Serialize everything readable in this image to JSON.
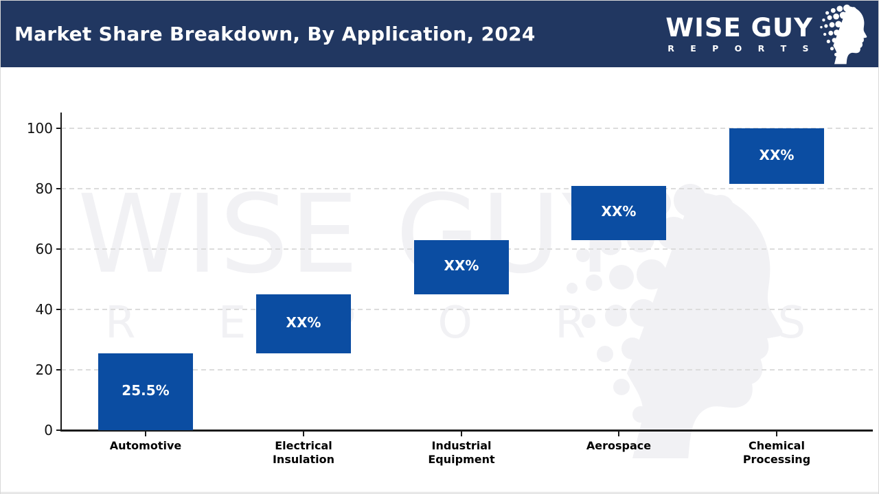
{
  "header": {
    "title": "Market Share Breakdown, By Application, 2024",
    "logo": {
      "primary": "WISE GUY",
      "secondary": "R E P O R T S"
    }
  },
  "watermark": {
    "line1": "WISE GUY",
    "line2": "R E P O R T S"
  },
  "colors": {
    "header_bg": "#213761",
    "bar": "#0B4DA2",
    "grid": "#DCDCDC",
    "axis": "#1A1A1A",
    "watermark": "#F1F1F4",
    "bar_label": "#FFFFFF"
  },
  "chart_data": {
    "type": "bar",
    "subtype": "waterfall",
    "title": "Market Share Breakdown, By Application, 2024",
    "categories": [
      "Automotive",
      "Electrical Insulation",
      "Industrial Equipment",
      "Aerospace",
      "Chemical Processing"
    ],
    "segments": [
      {
        "category": "Automotive",
        "start": 0,
        "end": 25.5,
        "label": "25.5%"
      },
      {
        "category": "Electrical Insulation",
        "start": 25.5,
        "end": 45,
        "label": "XX%"
      },
      {
        "category": "Industrial Equipment",
        "start": 45,
        "end": 63,
        "label": "XX%"
      },
      {
        "category": "Aerospace",
        "start": 63,
        "end": 81,
        "label": "XX%"
      },
      {
        "category": "Chemical Processing",
        "start": 81.5,
        "end": 100,
        "label": "XX%"
      }
    ],
    "xlabel": "",
    "ylabel": "",
    "ylim": [
      0,
      100
    ],
    "yticks": [
      0,
      20,
      40,
      60,
      80,
      100
    ],
    "grid": "horizontal-dashed",
    "legend": "none"
  }
}
